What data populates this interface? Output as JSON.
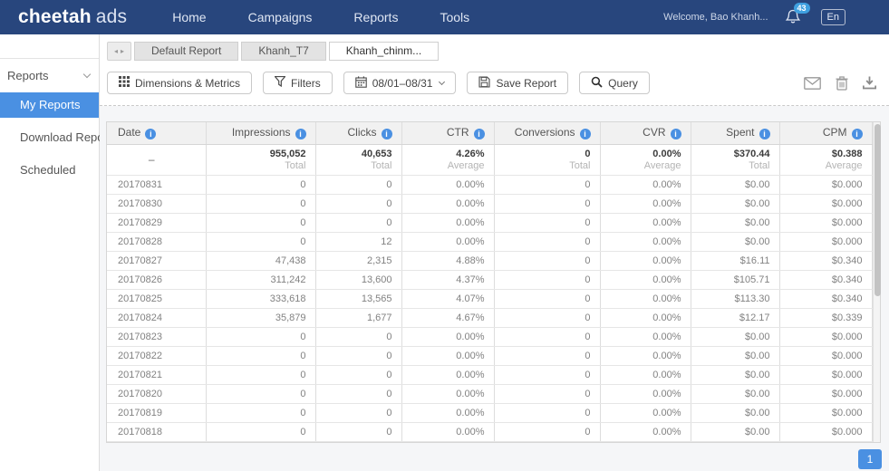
{
  "navbar": {
    "logo_bold": "cheetah",
    "logo_light": "ads",
    "items": [
      "Home",
      "Campaigns",
      "Reports",
      "Tools"
    ],
    "welcome": "Welcome,  Bao Khanh...",
    "notification_count": "43",
    "language": "En"
  },
  "sidebar": {
    "section_label": "Reports",
    "items": [
      {
        "label": "My Reports",
        "active": true
      },
      {
        "label": "Download Report",
        "active": false
      },
      {
        "label": "Scheduled",
        "active": false
      }
    ]
  },
  "tab_strip": {
    "back_glyph": "◂",
    "forward_glyph": "▸",
    "tabs": [
      {
        "label": "Default Report",
        "active": false
      },
      {
        "label": "Khanh_T7",
        "active": false
      },
      {
        "label": "Khanh_chinm...",
        "active": true
      }
    ]
  },
  "toolbar": {
    "dimensions_metrics_label": "Dimensions & Metrics",
    "filters_label": "Filters",
    "date_range_label": "08/01–08/31",
    "save_report_label": "Save Report",
    "query_label": "Query"
  },
  "table": {
    "columns": [
      "Date",
      "Impressions",
      "Clicks",
      "CTR",
      "Conversions",
      "CVR",
      "Spent",
      "CPM"
    ],
    "summary": {
      "date": "–",
      "values": [
        "955,052",
        "40,653",
        "4.26%",
        "0",
        "0.00%",
        "$370.44",
        "$0.388"
      ],
      "labels": [
        "Total",
        "Total",
        "Average",
        "Total",
        "Average",
        "Total",
        "Average"
      ]
    },
    "rows": [
      {
        "date": "20170831",
        "values": [
          "0",
          "0",
          "0.00%",
          "0",
          "0.00%",
          "$0.00",
          "$0.000"
        ]
      },
      {
        "date": "20170830",
        "values": [
          "0",
          "0",
          "0.00%",
          "0",
          "0.00%",
          "$0.00",
          "$0.000"
        ]
      },
      {
        "date": "20170829",
        "values": [
          "0",
          "0",
          "0.00%",
          "0",
          "0.00%",
          "$0.00",
          "$0.000"
        ]
      },
      {
        "date": "20170828",
        "values": [
          "0",
          "12",
          "0.00%",
          "0",
          "0.00%",
          "$0.00",
          "$0.000"
        ]
      },
      {
        "date": "20170827",
        "values": [
          "47,438",
          "2,315",
          "4.88%",
          "0",
          "0.00%",
          "$16.11",
          "$0.340"
        ]
      },
      {
        "date": "20170826",
        "values": [
          "311,242",
          "13,600",
          "4.37%",
          "0",
          "0.00%",
          "$105.71",
          "$0.340"
        ]
      },
      {
        "date": "20170825",
        "values": [
          "333,618",
          "13,565",
          "4.07%",
          "0",
          "0.00%",
          "$113.30",
          "$0.340"
        ]
      },
      {
        "date": "20170824",
        "values": [
          "35,879",
          "1,677",
          "4.67%",
          "0",
          "0.00%",
          "$12.17",
          "$0.339"
        ]
      },
      {
        "date": "20170823",
        "values": [
          "0",
          "0",
          "0.00%",
          "0",
          "0.00%",
          "$0.00",
          "$0.000"
        ]
      },
      {
        "date": "20170822",
        "values": [
          "0",
          "0",
          "0.00%",
          "0",
          "0.00%",
          "$0.00",
          "$0.000"
        ]
      },
      {
        "date": "20170821",
        "values": [
          "0",
          "0",
          "0.00%",
          "0",
          "0.00%",
          "$0.00",
          "$0.000"
        ]
      },
      {
        "date": "20170820",
        "values": [
          "0",
          "0",
          "0.00%",
          "0",
          "0.00%",
          "$0.00",
          "$0.000"
        ]
      },
      {
        "date": "20170819",
        "values": [
          "0",
          "0",
          "0.00%",
          "0",
          "0.00%",
          "$0.00",
          "$0.000"
        ]
      },
      {
        "date": "20170818",
        "values": [
          "0",
          "0",
          "0.00%",
          "0",
          "0.00%",
          "$0.00",
          "$0.000"
        ]
      }
    ]
  },
  "pagination": {
    "page": "1"
  },
  "colors": {
    "navbar_bg": "#28467d",
    "accent_blue": "#4a90e2",
    "badge_blue": "#3fa0e0"
  }
}
